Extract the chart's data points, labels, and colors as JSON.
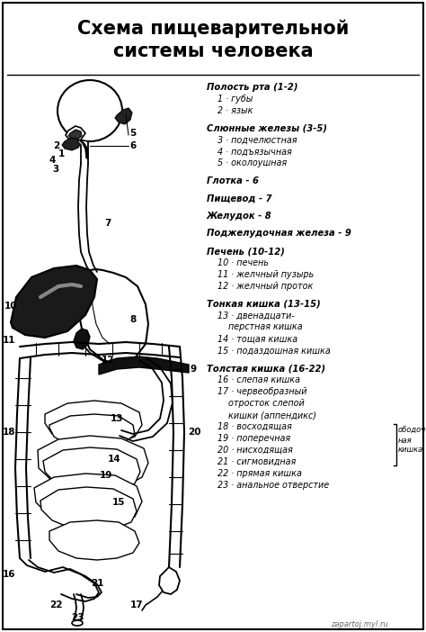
{
  "title": "Схема пищеварительной\nсистемы человека",
  "background_color": "#ffffff",
  "border_color": "#000000",
  "text_color": "#000000",
  "title_fontsize": 15,
  "body_fontsize": 7.2,
  "legend_lines": [
    {
      "text": "Полость рта (1-2)",
      "bold": true,
      "italic": true,
      "indent": 0
    },
    {
      "text": "1 · губы",
      "bold": false,
      "italic": true,
      "indent": 1
    },
    {
      "text": "2 · язык",
      "bold": false,
      "italic": true,
      "indent": 1
    },
    {
      "text": "",
      "bold": false,
      "italic": false,
      "indent": 0
    },
    {
      "text": "Слюнные железы (3-5)",
      "bold": true,
      "italic": true,
      "indent": 0
    },
    {
      "text": "3 · подчелюстная",
      "bold": false,
      "italic": true,
      "indent": 1
    },
    {
      "text": "4 · подъязычная",
      "bold": false,
      "italic": true,
      "indent": 1
    },
    {
      "text": "5 · околоушная",
      "bold": false,
      "italic": true,
      "indent": 1
    },
    {
      "text": "",
      "bold": false,
      "italic": false,
      "indent": 0
    },
    {
      "text": "Глотка - 6",
      "bold": true,
      "italic": true,
      "indent": 0
    },
    {
      "text": "",
      "bold": false,
      "italic": false,
      "indent": 0
    },
    {
      "text": "Пищевод - 7",
      "bold": true,
      "italic": true,
      "indent": 0
    },
    {
      "text": "",
      "bold": false,
      "italic": false,
      "indent": 0
    },
    {
      "text": "Желудок - 8",
      "bold": true,
      "italic": true,
      "indent": 0
    },
    {
      "text": "",
      "bold": false,
      "italic": false,
      "indent": 0
    },
    {
      "text": "Поджелудочная железа - 9",
      "bold": true,
      "italic": true,
      "indent": 0
    },
    {
      "text": "",
      "bold": false,
      "italic": false,
      "indent": 0
    },
    {
      "text": "Печень (10-12)",
      "bold": true,
      "italic": true,
      "indent": 0
    },
    {
      "text": "10 · печень",
      "bold": false,
      "italic": true,
      "indent": 1
    },
    {
      "text": "11 · желчный пузырь",
      "bold": false,
      "italic": true,
      "indent": 1
    },
    {
      "text": "12 · желчный проток",
      "bold": false,
      "italic": true,
      "indent": 1
    },
    {
      "text": "",
      "bold": false,
      "italic": false,
      "indent": 0
    },
    {
      "text": "Тонкая кишка (13-15)",
      "bold": true,
      "italic": true,
      "indent": 0
    },
    {
      "text": "13 · двенадцати-",
      "bold": false,
      "italic": true,
      "indent": 1
    },
    {
      "text": "перстная кишка",
      "bold": false,
      "italic": true,
      "indent": 2
    },
    {
      "text": "14 · тощая кишка",
      "bold": false,
      "italic": true,
      "indent": 1
    },
    {
      "text": "15 · подаздошная кишка",
      "bold": false,
      "italic": true,
      "indent": 1
    },
    {
      "text": "",
      "bold": false,
      "italic": false,
      "indent": 0
    },
    {
      "text": "Толстая кишка (16-22)",
      "bold": true,
      "italic": true,
      "indent": 0
    },
    {
      "text": "16 · слепая кишка",
      "bold": false,
      "italic": true,
      "indent": 1
    },
    {
      "text": "17 · червеобразный",
      "bold": false,
      "italic": true,
      "indent": 1
    },
    {
      "text": "отросток слепой",
      "bold": false,
      "italic": true,
      "indent": 2
    },
    {
      "text": "кишки (аппендикс)",
      "bold": false,
      "italic": true,
      "indent": 2
    },
    {
      "text": "18 · восходящая",
      "bold": false,
      "italic": true,
      "indent": 1
    },
    {
      "text": "19 · поперечная",
      "bold": false,
      "italic": true,
      "indent": 1
    },
    {
      "text": "20 · нисходящая",
      "bold": false,
      "italic": true,
      "indent": 1
    },
    {
      "text": "21 · сигмовидная",
      "bold": false,
      "italic": true,
      "indent": 1
    },
    {
      "text": "22 · прямая кишка",
      "bold": false,
      "italic": true,
      "indent": 1
    },
    {
      "text": "23 · анальное отверстие",
      "bold": false,
      "italic": true,
      "indent": 1
    }
  ],
  "watermark": "zapartoj.myl.ru",
  "fig_width": 4.74,
  "fig_height": 7.02,
  "dpi": 100
}
